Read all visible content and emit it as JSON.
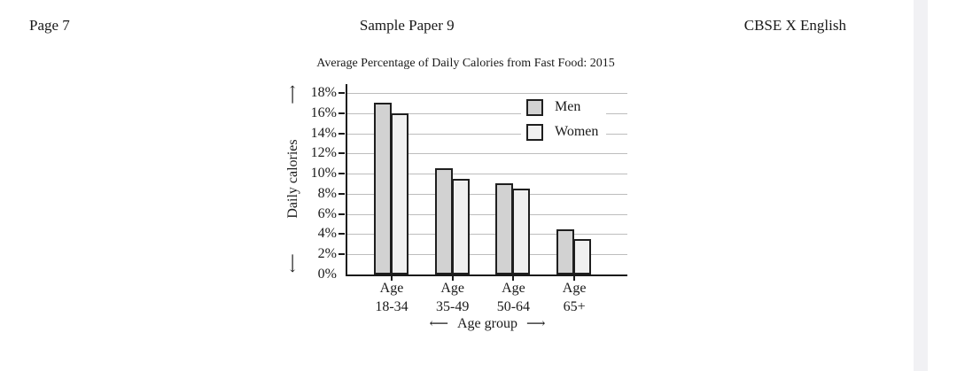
{
  "header": {
    "page_number": "Page 7",
    "title": "Sample Paper 9",
    "course": "CBSE X English"
  },
  "icons": {
    "arrow_left": "⟵",
    "arrow_right": "⟶"
  },
  "chart_data": {
    "type": "bar",
    "title": "Average Percentage of Daily Calories from Fast Food: 2015",
    "categories": [
      [
        "Age",
        "18-34"
      ],
      [
        "Age",
        "35-49"
      ],
      [
        "Age",
        "50-64"
      ],
      [
        "Age",
        "65+"
      ]
    ],
    "series": [
      {
        "name": "Men",
        "color": "#d2d2d2",
        "values": [
          17,
          10.5,
          9,
          4.5
        ]
      },
      {
        "name": "Women",
        "color": "#f0f0f0",
        "values": [
          16,
          9.5,
          8.5,
          3.5
        ]
      }
    ],
    "xlabel": "Age group",
    "ylabel": "Daily calories",
    "ylim": [
      0,
      18
    ],
    "ytick_step": 2,
    "ytick_suffix": "%",
    "grid": true,
    "legend_position": "top-right",
    "axis_colors": {
      "grid": "#bdbdbd",
      "axis": "#1a1a1a"
    }
  }
}
